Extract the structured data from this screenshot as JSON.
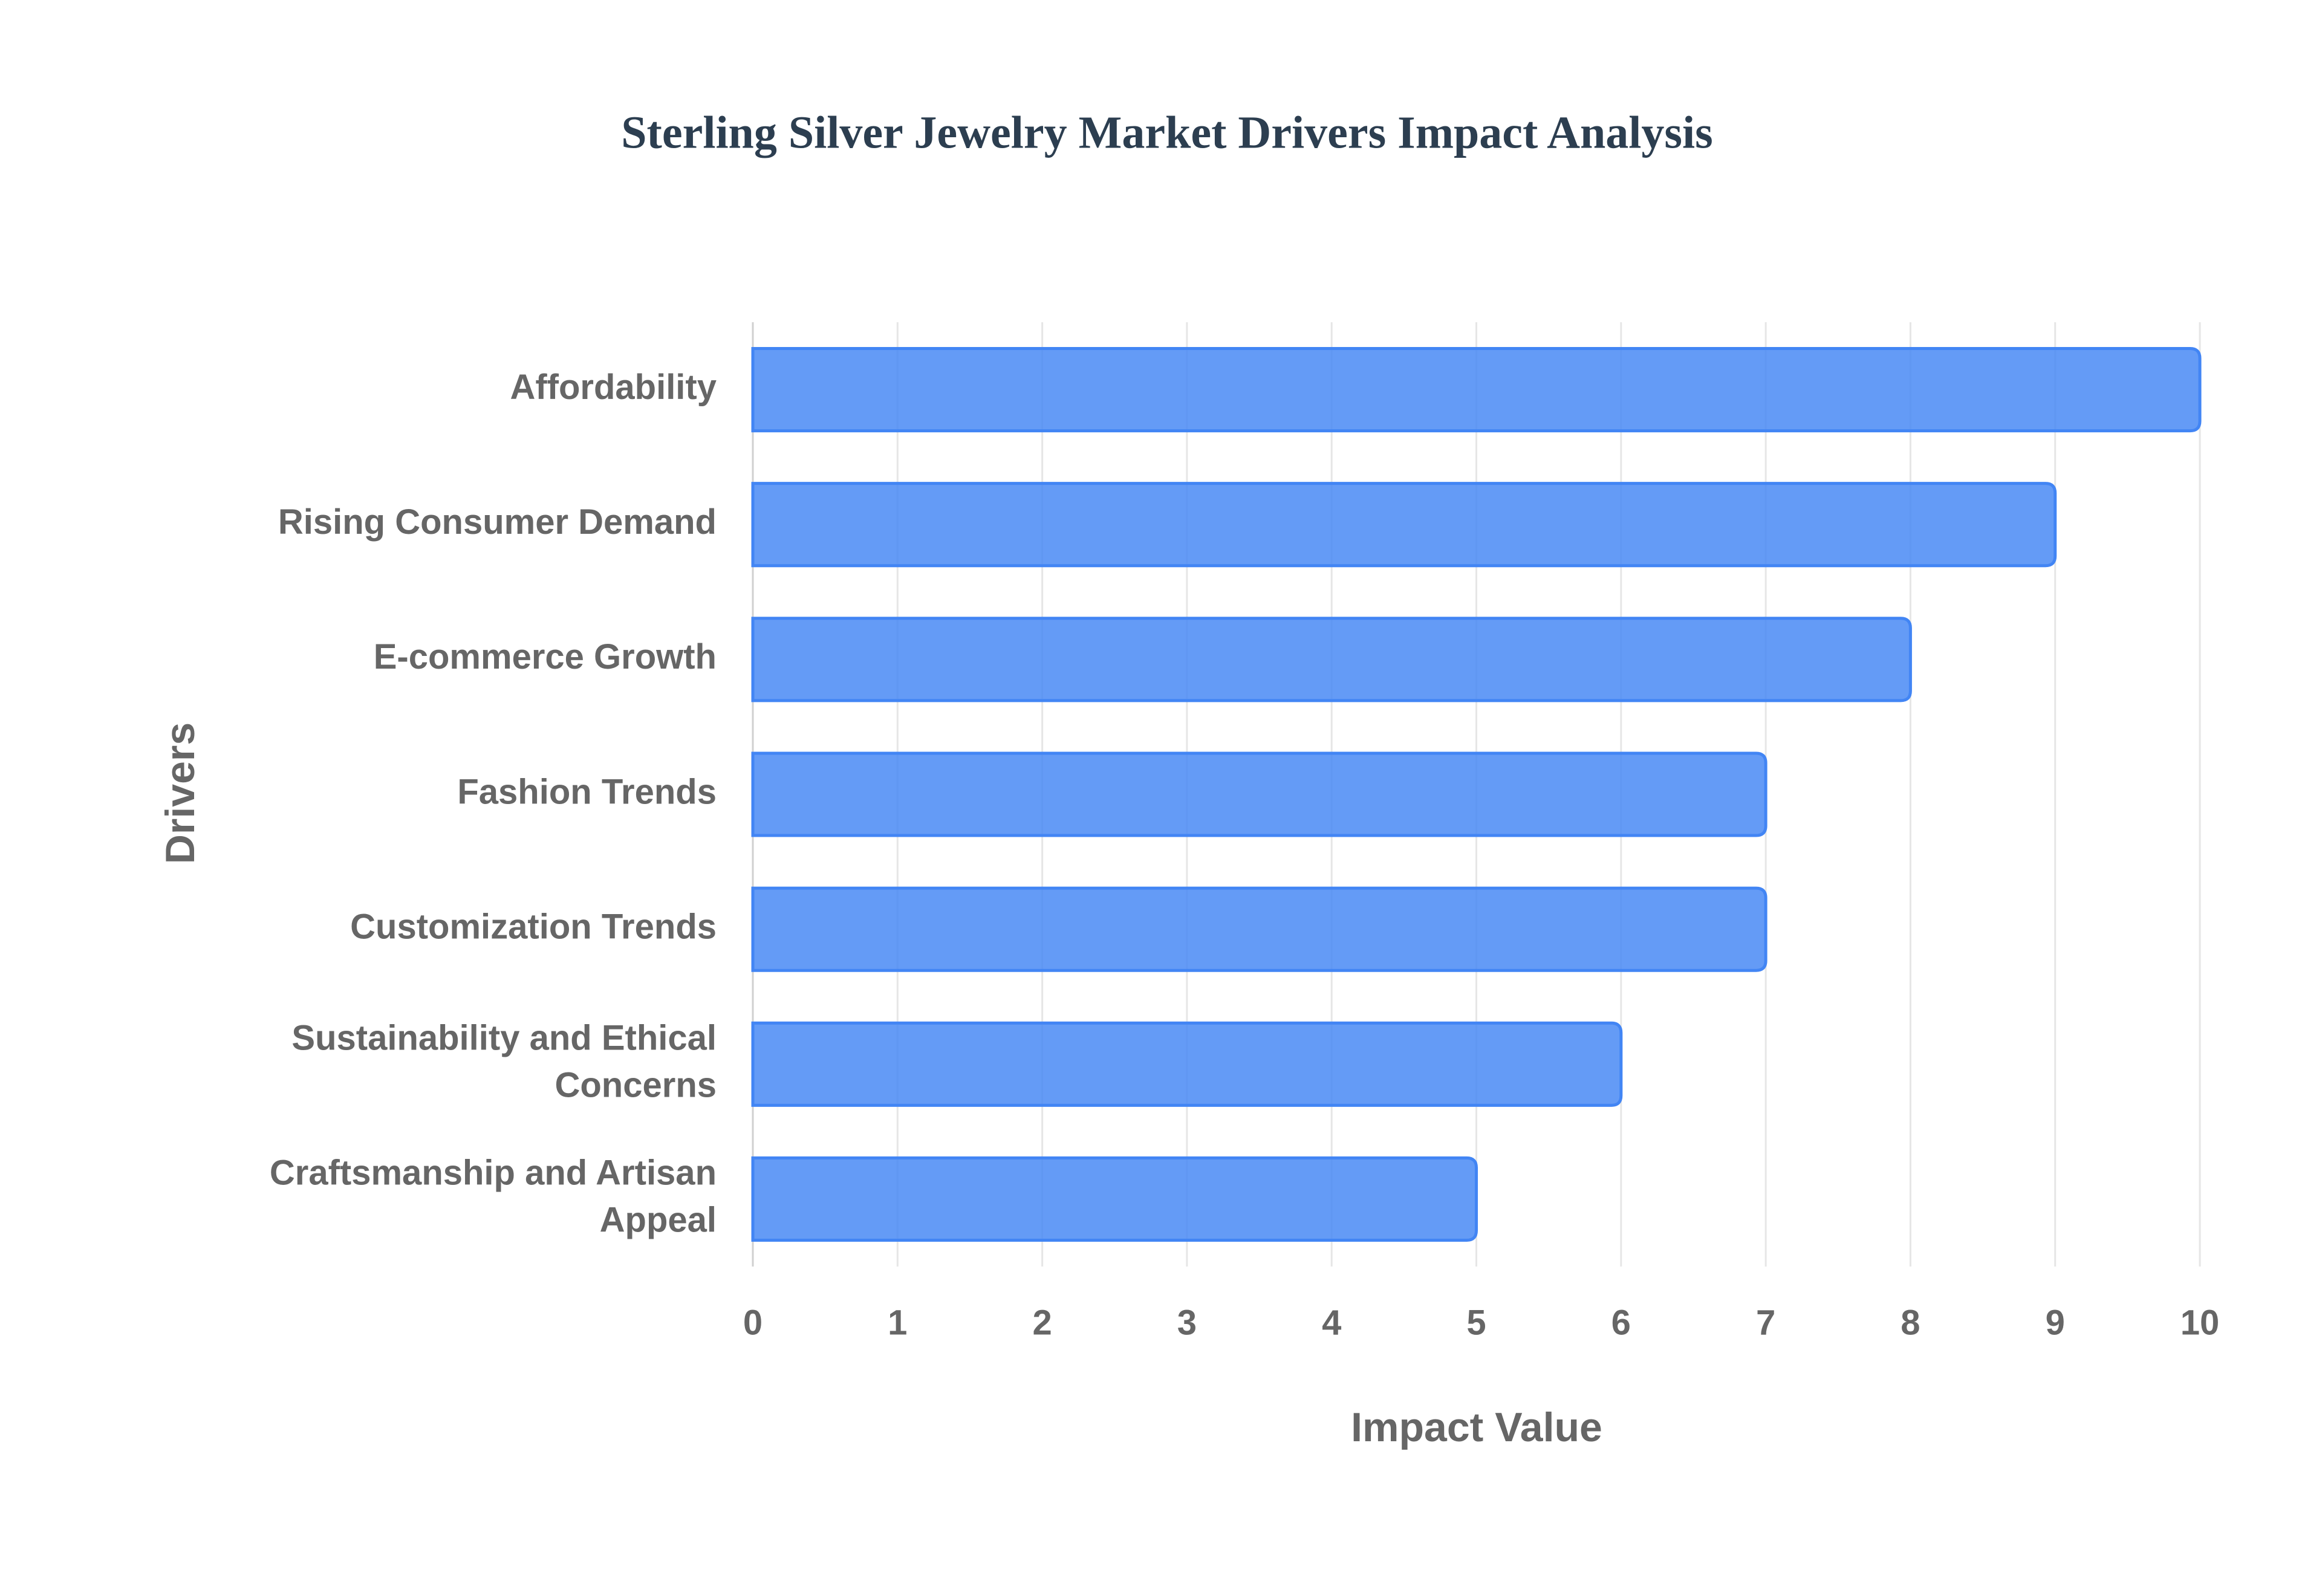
{
  "chart_data": {
    "type": "bar",
    "orientation": "horizontal",
    "title": "Sterling Silver Jewelry Market Drivers Impact Analysis",
    "x_label": "Impact Value",
    "y_label": "Drivers",
    "categories": [
      "Affordability",
      "Rising Consumer Demand",
      "E-commerce Growth",
      "Fashion Trends",
      "Customization Trends",
      "Sustainability and Ethical Concerns",
      "Craftsmanship and Artisan Appeal"
    ],
    "values": [
      10,
      9,
      8,
      7,
      7,
      6,
      5
    ],
    "color": "#4285f4",
    "xlim": [
      0,
      10
    ],
    "xticks": [
      0,
      1,
      2,
      3,
      4,
      5,
      6,
      7,
      8,
      9,
      10
    ],
    "grid": true
  }
}
